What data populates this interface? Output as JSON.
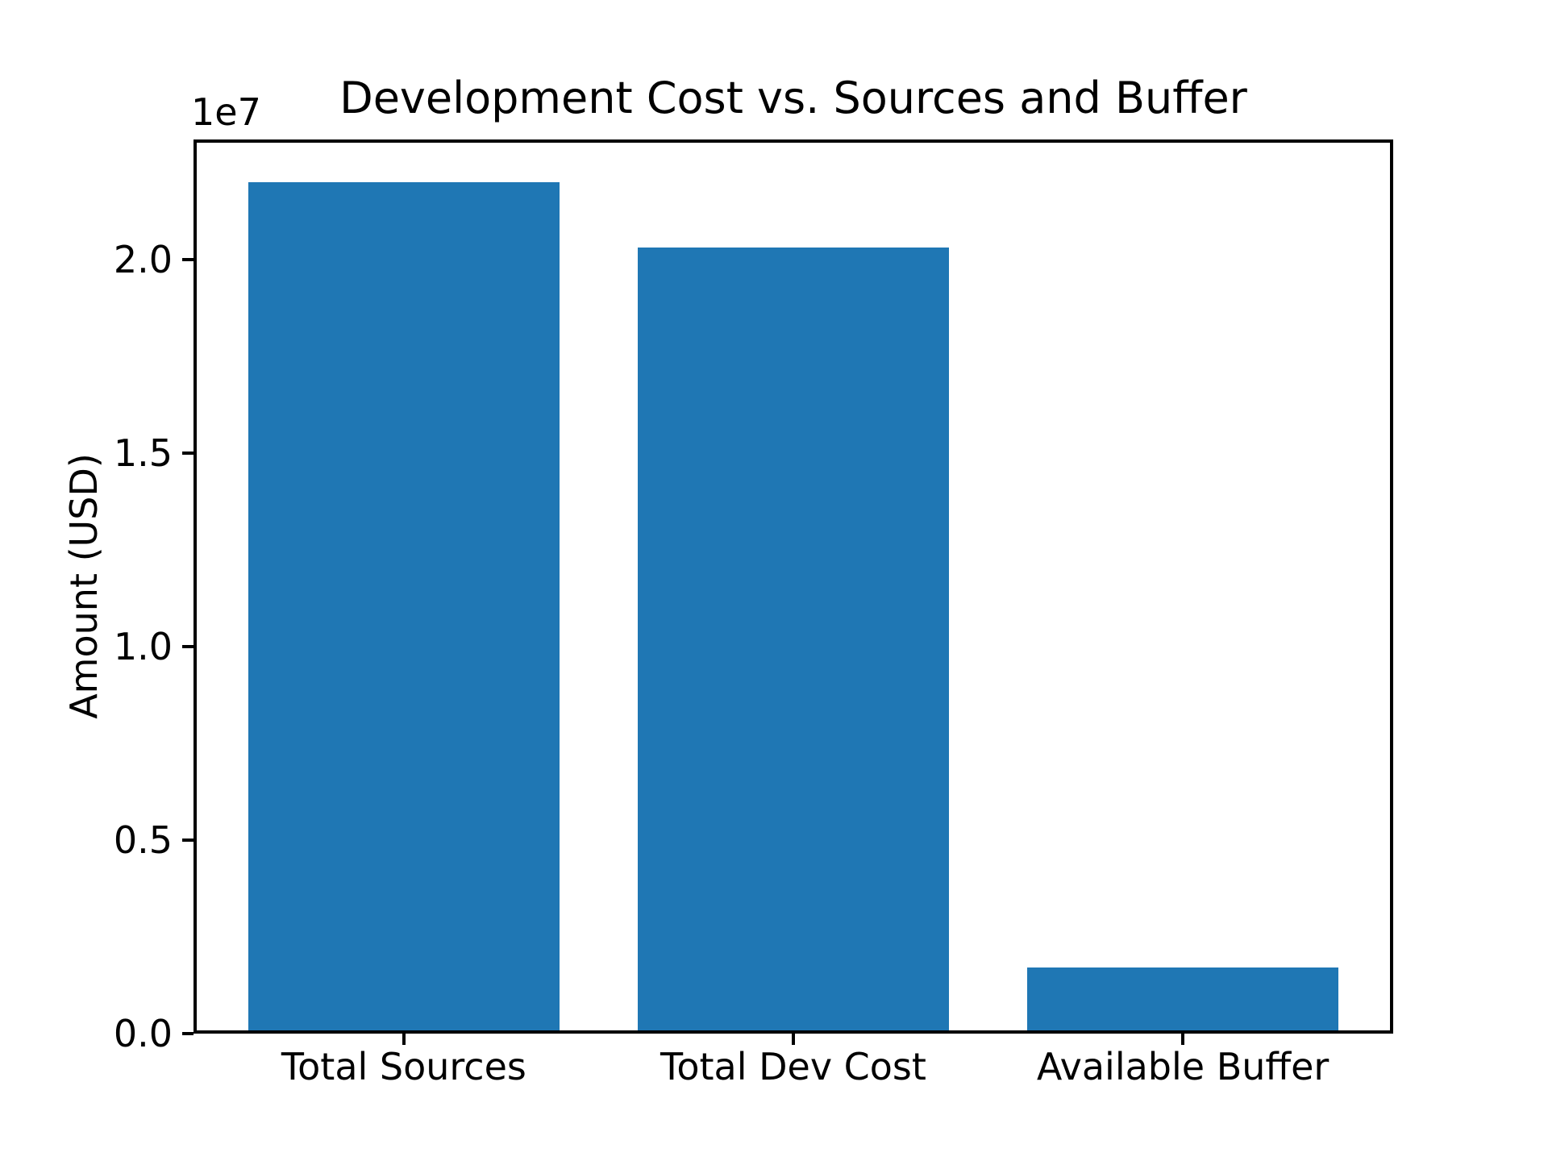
{
  "chart_data": {
    "type": "bar",
    "title": "Development Cost vs. Sources and Buffer",
    "xlabel": "",
    "ylabel": "Amount (USD)",
    "offset_text": "1e7",
    "categories": [
      "Total Sources",
      "Total Dev Cost",
      "Available Buffer"
    ],
    "values": [
      22000000,
      20300000,
      1700000
    ],
    "x_positions": [
      0,
      1,
      2
    ],
    "bar_width": 0.8,
    "xlim": [
      -0.54,
      2.54
    ],
    "ylim": [
      0,
      23100000
    ],
    "yticks": [
      {
        "value": 0,
        "label": "0.0"
      },
      {
        "value": 5000000,
        "label": "0.5"
      },
      {
        "value": 10000000,
        "label": "1.0"
      },
      {
        "value": 15000000,
        "label": "1.5"
      },
      {
        "value": 20000000,
        "label": "2.0"
      }
    ],
    "grid": false,
    "legend": null,
    "bar_color": "#1f77b4",
    "axis_color": "#000000",
    "text_color": "#000000",
    "background_color": "#ffffff"
  }
}
